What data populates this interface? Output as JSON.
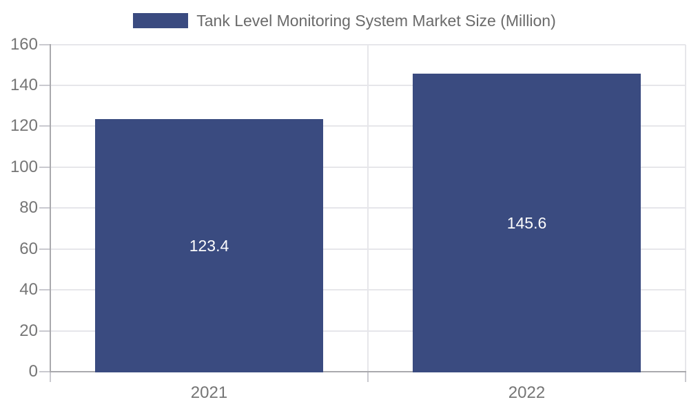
{
  "chart_data": {
    "type": "bar",
    "title": "Tank Level Monitoring System Market Size (Million)",
    "categories": [
      "2021",
      "2022"
    ],
    "series": [
      {
        "name": "Tank Level Monitoring System Market Size (Million)",
        "values": [
          123.4,
          145.6
        ]
      }
    ],
    "value_labels": [
      "123.4",
      "145.6"
    ],
    "xlabel": "",
    "ylabel": "",
    "ylim": [
      0,
      160
    ],
    "yticks": [
      0,
      20,
      40,
      60,
      80,
      100,
      120,
      140,
      160
    ],
    "grid": true,
    "legend_position": "top",
    "colors": {
      "bar": "#3a4b80",
      "grid_line": "#e6e6ea",
      "axis_line": "#a9a9ad",
      "tick_mark": "#c9c9cf",
      "axis_text": "#757575",
      "legend_text": "#6a6a6a",
      "value_label_text": "#fcfcfc",
      "background": "#ffffff"
    }
  }
}
